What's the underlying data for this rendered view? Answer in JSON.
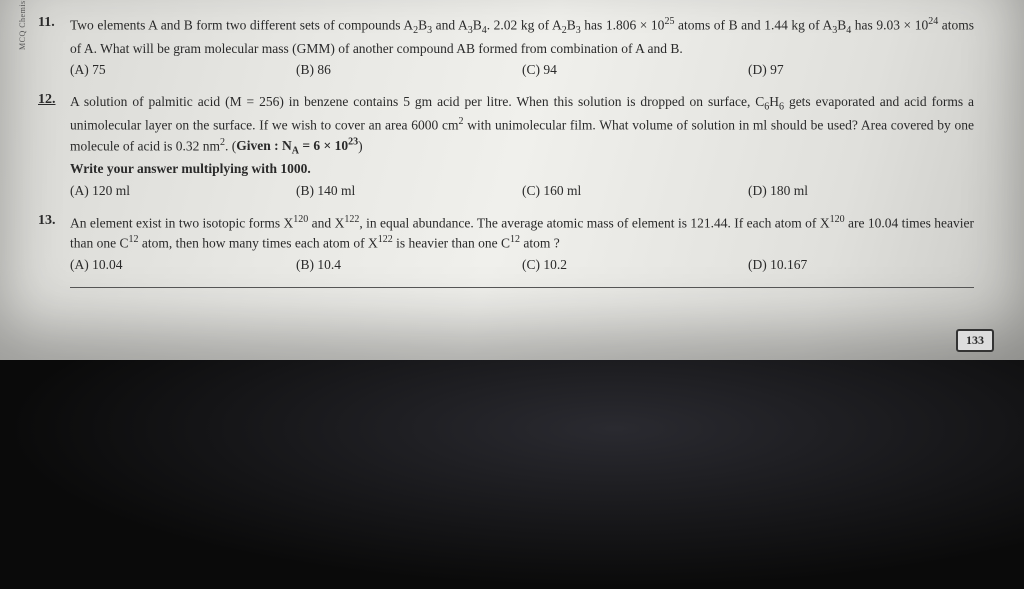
{
  "sidebar": {
    "text": "MCQ Chemistry — General Chemistry"
  },
  "questions": [
    {
      "number": "11.",
      "text_html": "Two elements A and B form two different sets of compounds A<sub>2</sub>B<sub>3</sub> and A<sub>3</sub>B<sub>4</sub>. 2.02 kg of A<sub>2</sub>B<sub>3</sub> has 1.806 × 10<sup>25</sup> atoms of B and 1.44 kg of A<sub>3</sub>B<sub>4</sub> has 9.03 × 10<sup>24</sup> atoms of A. What will be gram molecular mass (GMM) of another compound AB formed from combination of A and B.",
      "options": [
        {
          "label": "(A) 75"
        },
        {
          "label": "(B) 86"
        },
        {
          "label": "(C) 94"
        },
        {
          "label": "(D) 97"
        }
      ]
    },
    {
      "number": "12.",
      "text_html": "A solution of palmitic acid (M = 256) in benzene contains 5 gm acid per litre. When this solution is dropped on surface, C<sub>6</sub>H<sub>6</sub> gets evaporated and acid forms a unimolecular layer on the surface. If we wish to cover an area 6000 cm<sup>2</sup> with unimolecular film. What volume of solution in ml should be used? Area covered by one molecule of acid is 0.32 nm<sup>2</sup>. (<b>Given : N<sub>A</sub> = 6 × 10<sup>23</sup></b>)",
      "instruction": "Write your answer multiplying with 1000.",
      "options": [
        {
          "label": "(A) 120 ml"
        },
        {
          "label": "(B) 140 ml"
        },
        {
          "label": "(C) 160 ml"
        },
        {
          "label": "(D) 180 ml"
        }
      ]
    },
    {
      "number": "13.",
      "text_html": "An element exist in two isotopic forms X<sup>120</sup> and X<sup>122</sup>, in equal abundance. The average atomic mass of element is 121.44. If each atom of X<sup>120</sup> are 10.04 times heavier than one C<sup>12</sup> atom, then how many times each atom of X<sup>122</sup> is heavier than one C<sup>12</sup> atom ?",
      "options": [
        {
          "label": "(A) 10.04"
        },
        {
          "label": "(B) 10.4"
        },
        {
          "label": "(C) 10.2"
        },
        {
          "label": "(D) 10.167"
        }
      ]
    }
  ],
  "page_tag": "133"
}
